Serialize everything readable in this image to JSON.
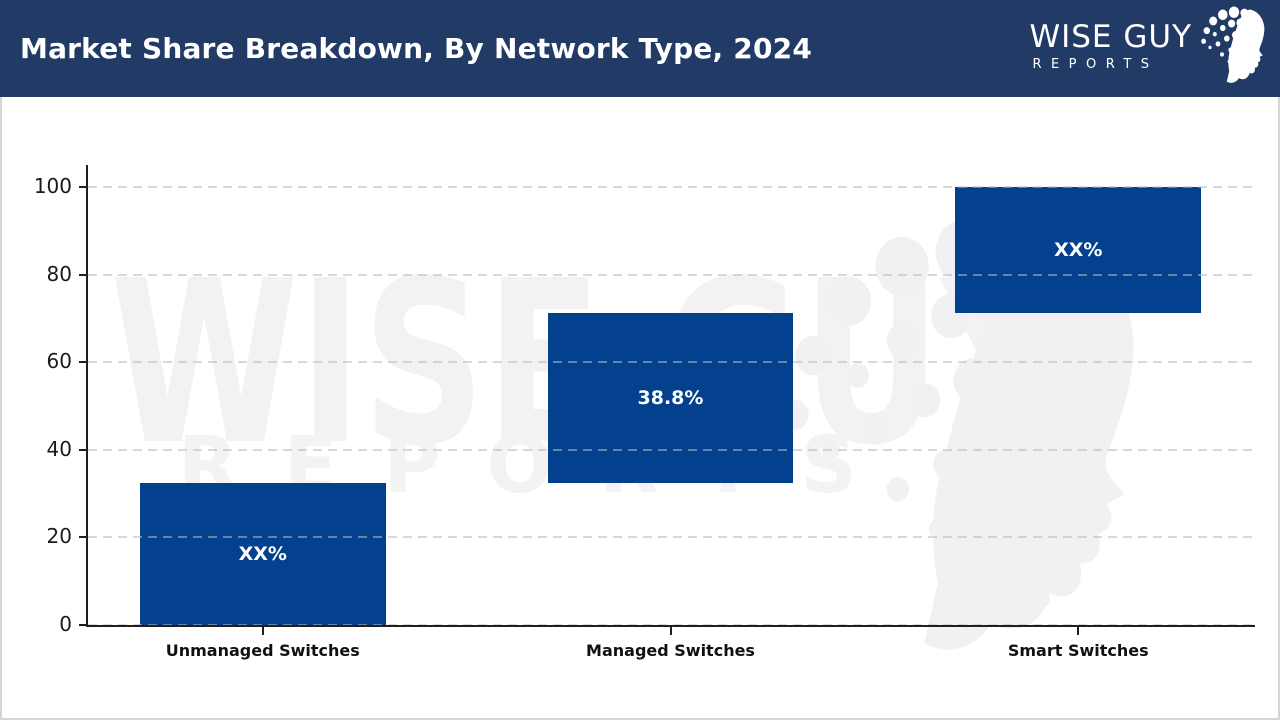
{
  "header": {
    "title": "Market Share Breakdown, By Network Type, 2024",
    "logo": {
      "line1": "WISE GUY",
      "line2": "REPORTS"
    }
  },
  "watermark": {
    "line1": "WISE GUY",
    "line2": "REPORTS"
  },
  "chart_data": {
    "type": "bar",
    "variant": "floating-stacked-percentage",
    "categories": [
      "Unmanaged Switches",
      "Managed Switches",
      "Smart Switches"
    ],
    "segments": [
      {
        "category": "Unmanaged Switches",
        "start": 0,
        "end": 32.4,
        "label": "XX%"
      },
      {
        "category": "Managed Switches",
        "start": 32.4,
        "end": 71.2,
        "label": "38.8%"
      },
      {
        "category": "Smart Switches",
        "start": 71.2,
        "end": 100,
        "label": "XX%"
      }
    ],
    "yticks": [
      0,
      20,
      40,
      60,
      80,
      100
    ],
    "ylim": [
      0,
      105
    ],
    "grid": "dashed-horizontal",
    "legend": "none",
    "bar_color": "#03418f",
    "bar_label_color": "#ffffff",
    "axis_color": "#1f1f1f",
    "tick_label_color": "#1a1a1a",
    "header_bg": "#213a66",
    "page_bg": "#ffffff",
    "watermark_color": "#f2f2f4"
  }
}
